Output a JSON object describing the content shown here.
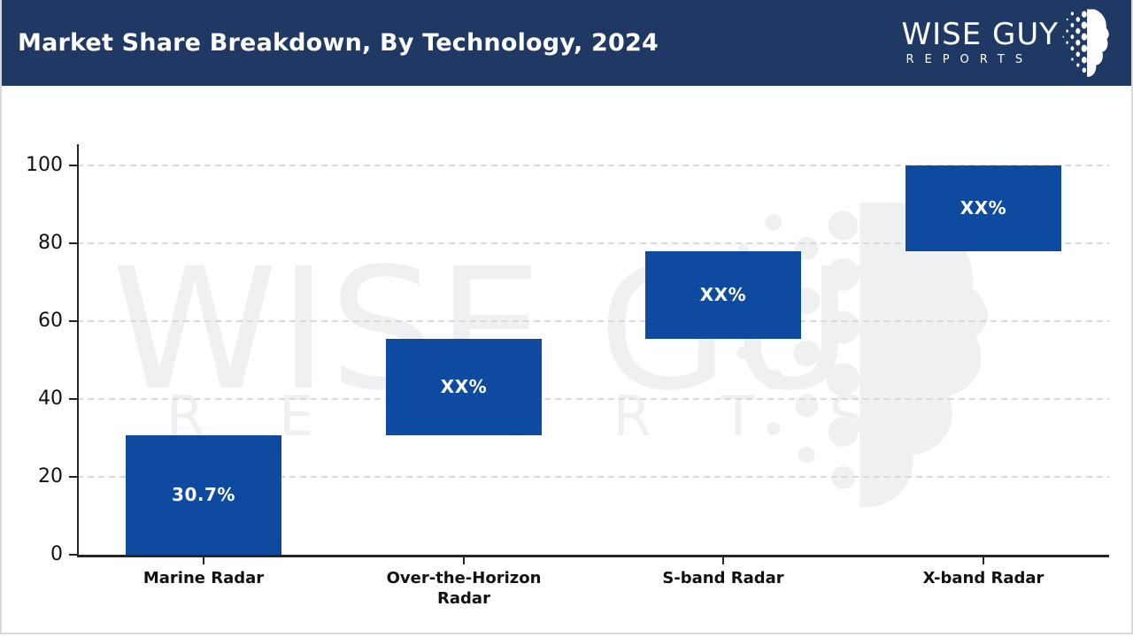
{
  "header": {
    "title": "Market Share Breakdown, By Technology, 2024",
    "background_color": "#1f3864",
    "logo": {
      "line1": "WISE GUY",
      "line2": "REPORTS"
    }
  },
  "watermark": {
    "line1": "WISE GUY",
    "line2": "REPORTS"
  },
  "chart_data": {
    "type": "bar",
    "subtype": "waterfall",
    "title": "Market Share Breakdown, By Technology, 2024",
    "categories": [
      "Marine Radar",
      "Over-the-Horizon Radar",
      "S-band Radar",
      "X-band Radar"
    ],
    "segments": [
      {
        "category": "Marine Radar",
        "start": 0,
        "end": 30.7,
        "label": "30.7%"
      },
      {
        "category": "Over-the-Horizon Radar",
        "start": 30.7,
        "end": 55.5,
        "label": "XX%"
      },
      {
        "category": "S-band Radar",
        "start": 55.5,
        "end": 78,
        "label": "XX%"
      },
      {
        "category": "X-band Radar",
        "start": 78,
        "end": 100,
        "label": "XX%"
      }
    ],
    "xlabel": "",
    "ylabel": "",
    "ylim": [
      0,
      100
    ],
    "yticks": [
      0,
      20,
      40,
      60,
      80,
      100
    ],
    "grid": "horizontal-dashed",
    "legend": "none",
    "bar_color": "#0d4aa0",
    "bar_label_color": "#ffffff",
    "axis_color": "#262626",
    "gridline_color": "#d9d9d9",
    "tick_label_color": "#111111"
  }
}
